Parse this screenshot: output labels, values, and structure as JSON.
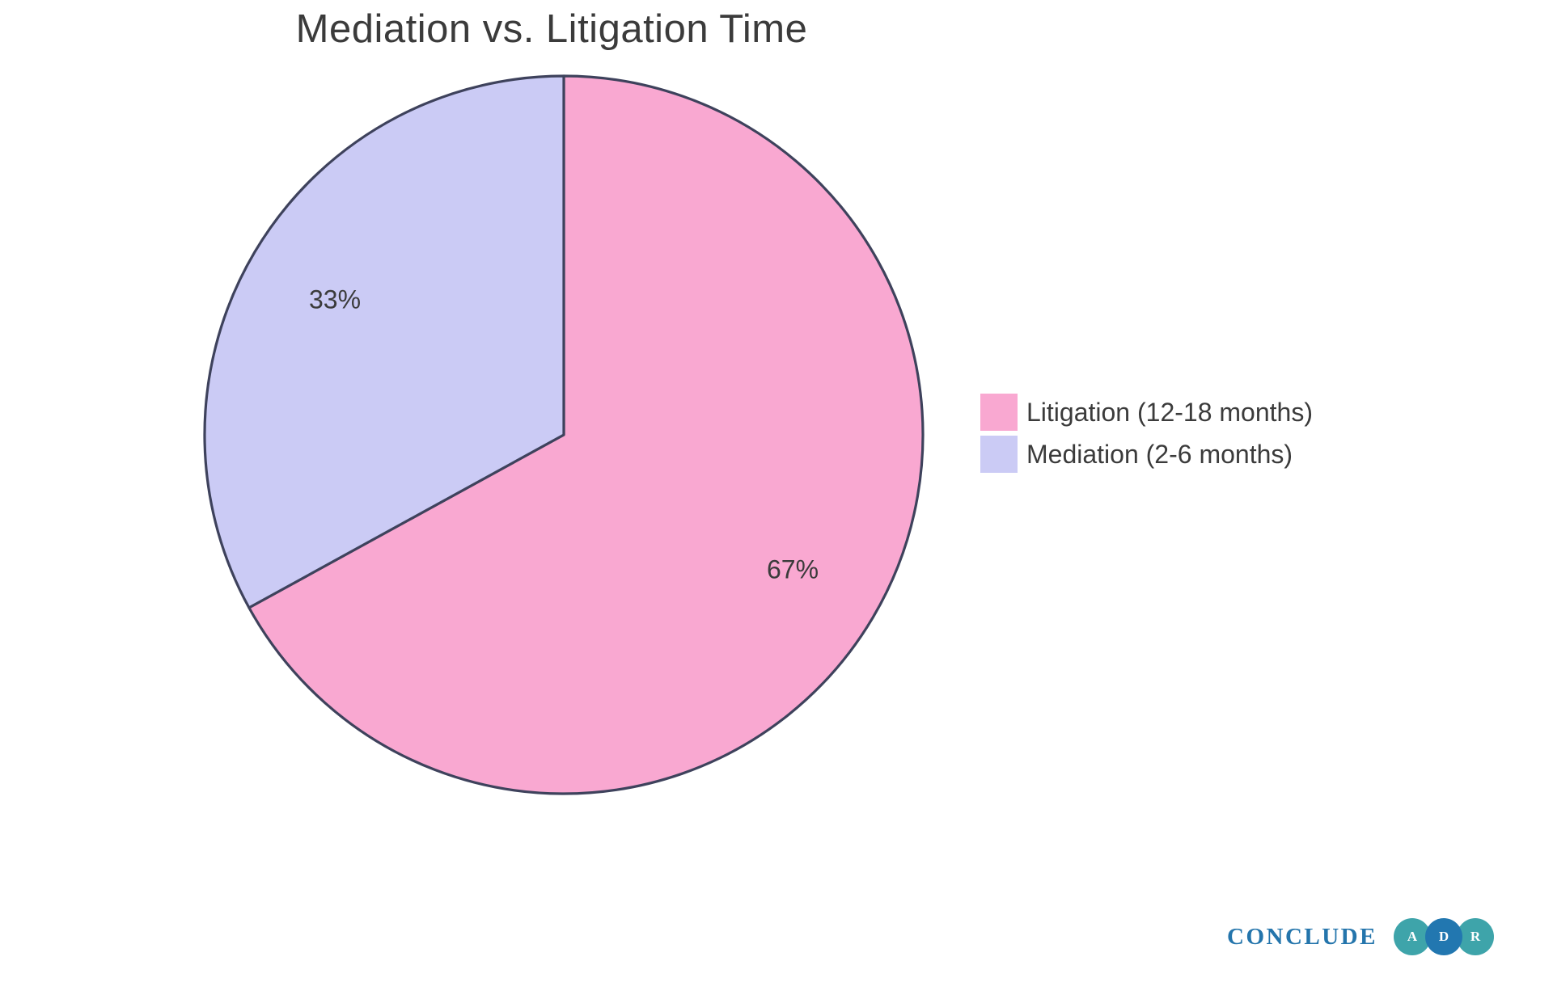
{
  "page": {
    "background_color": "#ffffff"
  },
  "title": "Mediation vs. Litigation Time",
  "chart_data": {
    "type": "pie",
    "title": "Mediation vs. Litigation Time",
    "slices": [
      {
        "label": "Litigation (12-18 months)",
        "value": 67,
        "percent_label": "67%",
        "color": "#F9A8D1"
      },
      {
        "label": "Mediation (2-6 months)",
        "value": 33,
        "percent_label": "33%",
        "color": "#CBCBF5"
      }
    ],
    "start_angle_deg": 0,
    "direction": "clockwise",
    "slice_border_color": "#3E425C",
    "slice_border_width": 3.2,
    "label_text_color": "#3B3B3B",
    "legend_position": "right"
  },
  "branding": {
    "wordmark": "CONCLUDE",
    "wordmark_color": "#2475AC",
    "badges": [
      {
        "letter": "A",
        "color": "#3EA4AA"
      },
      {
        "letter": "D",
        "color": "#2277B0"
      },
      {
        "letter": "R",
        "color": "#3EA4AA"
      }
    ]
  }
}
